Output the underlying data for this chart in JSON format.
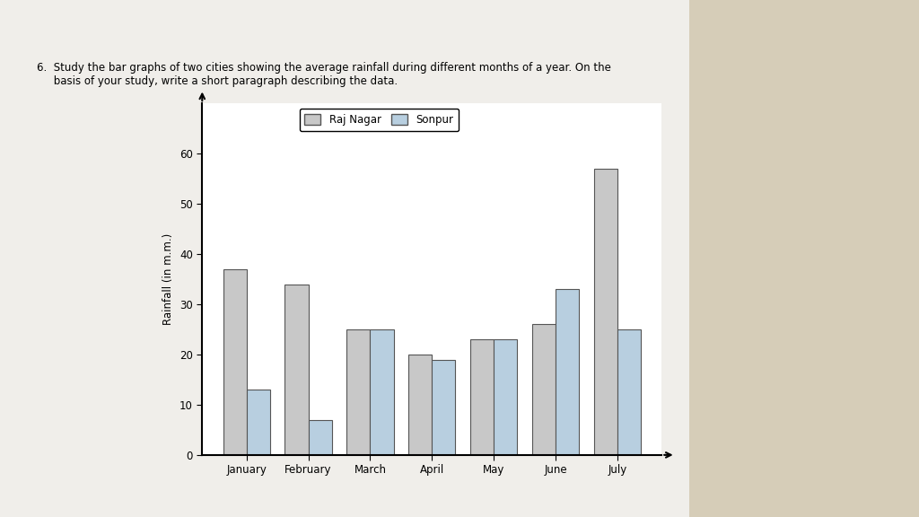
{
  "months": [
    "January",
    "February",
    "March",
    "April",
    "May",
    "June",
    "July"
  ],
  "raj_nagar": [
    37,
    34,
    25,
    20,
    23,
    26,
    57
  ],
  "sonpur": [
    13,
    7,
    25,
    19,
    23,
    33,
    25
  ],
  "raj_nagar_color": "#c8c8c8",
  "sonpur_color": "#b8cfe0",
  "raj_nagar_label": "Raj Nagar",
  "sonpur_label": "Sonpur",
  "ylabel": "Rainfall (in m.m.)",
  "ylim": [
    0,
    70
  ],
  "yticks": [
    0,
    10,
    20,
    30,
    40,
    50,
    60
  ],
  "bar_width": 0.38,
  "title": "",
  "page_bg": "#d6cdb8",
  "paper_color": "#f0eeea",
  "plot_bg": "#ffffff",
  "question_text": "6.  Study the bar graphs of two cities showing the average rainfall during different months of a year. On the\n     basis of your study, write a short paragraph describing the data.",
  "figsize": [
    10.24,
    5.76
  ],
  "dpi": 100
}
